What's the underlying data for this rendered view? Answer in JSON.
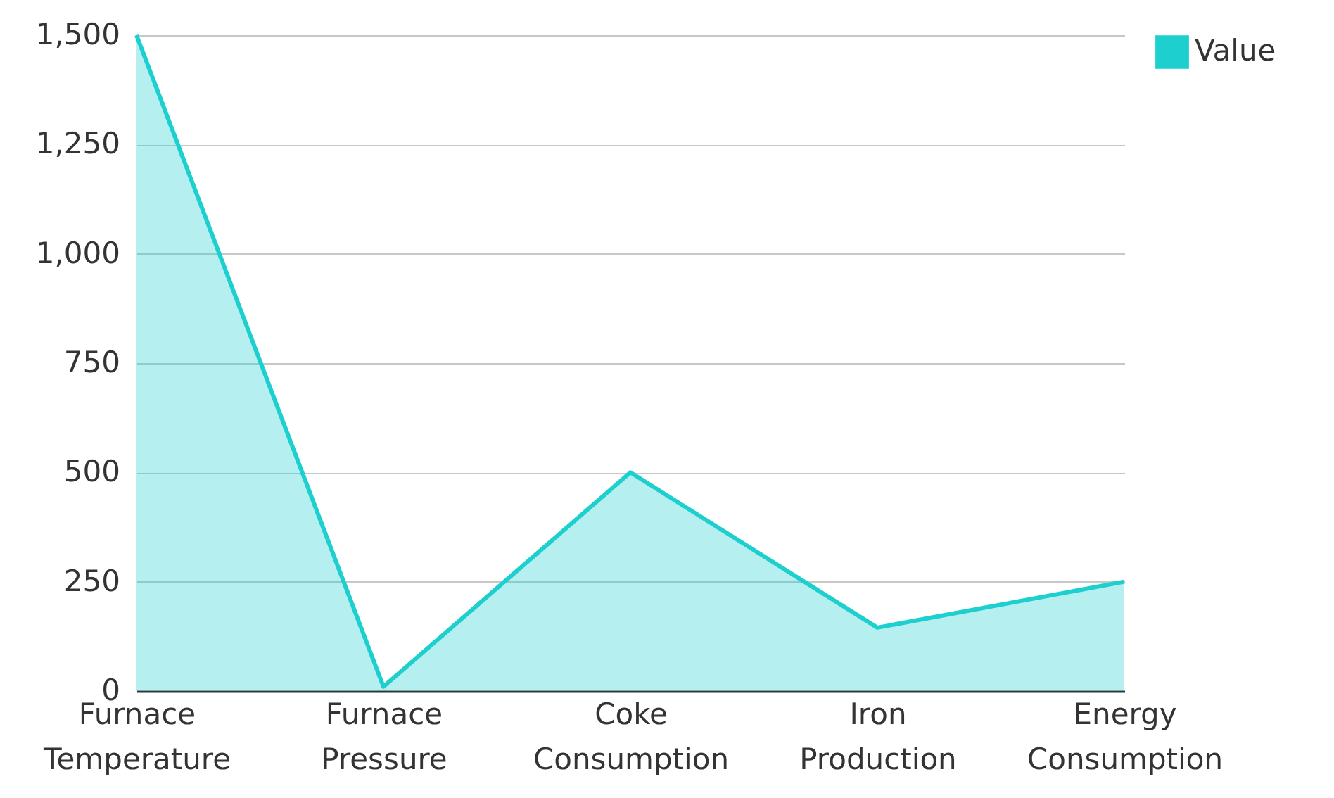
{
  "chart_data": {
    "type": "area",
    "categories": [
      "Furnace Temperature",
      "Furnace Pressure",
      "Coke Consumption",
      "Iron Production",
      "Energy Consumption"
    ],
    "series": [
      {
        "name": "Value",
        "color": "#1ecfcf",
        "values": [
          1500,
          10,
          500,
          145,
          250
        ]
      }
    ],
    "ylim": [
      0,
      1500
    ],
    "yticks": [
      0,
      250,
      500,
      750,
      {
        "value": 1000,
        "label": "1,000"
      },
      {
        "value": 1250,
        "label": "1,250"
      },
      {
        "value": 1500,
        "label": "1,500"
      }
    ],
    "grid": "y",
    "legend": "top right"
  }
}
